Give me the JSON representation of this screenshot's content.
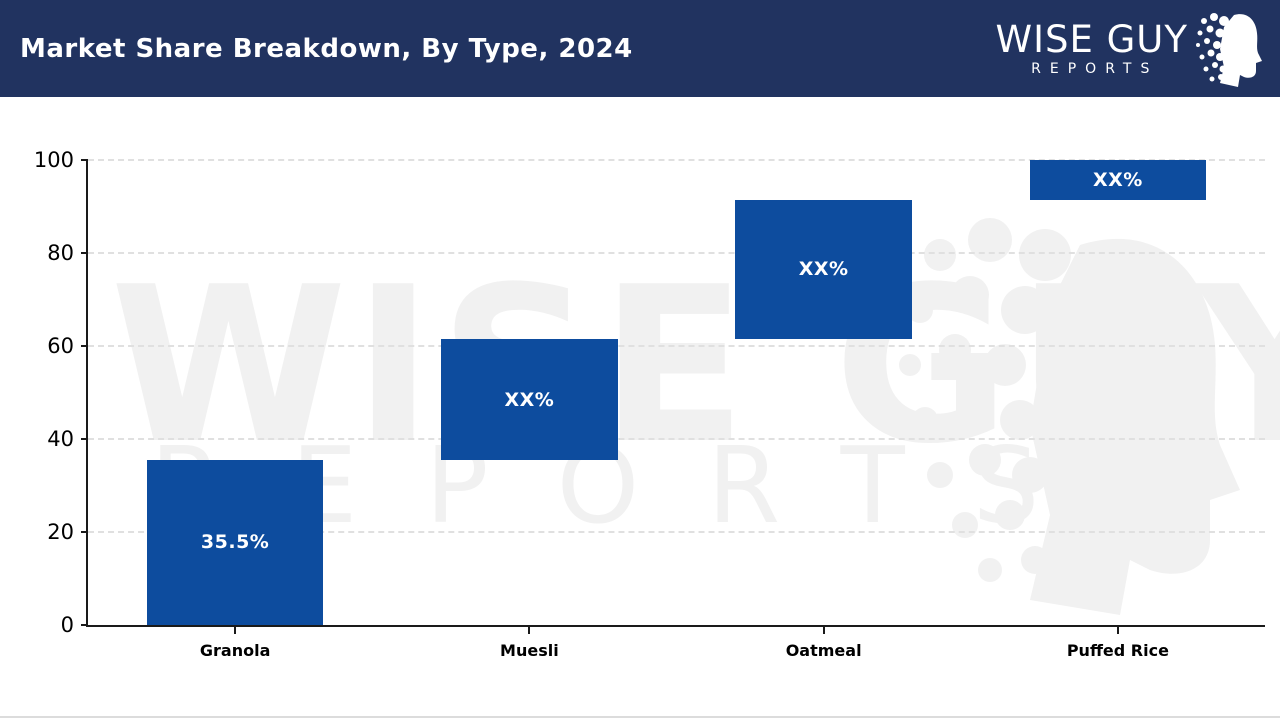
{
  "header": {
    "title": "Market Share Breakdown, By Type, 2024",
    "bg_color": "#213360",
    "logo": {
      "line1": "WISE GUY",
      "line2": "REPORTS"
    }
  },
  "watermark": {
    "line1": "WISE GUY",
    "line2": "REPORTS"
  },
  "chart_data": {
    "type": "bar",
    "subtype": "waterfall",
    "title": "Market Share Breakdown, By Type, 2024",
    "categories": [
      "Granola",
      "Muesli",
      "Oatmeal",
      "Puffed Rice"
    ],
    "segments": [
      {
        "category": "Granola",
        "start": 0,
        "end": 35.5,
        "label": "35.5%"
      },
      {
        "category": "Muesli",
        "start": 35.5,
        "end": 61.4,
        "label": "XX%"
      },
      {
        "category": "Oatmeal",
        "start": 61.4,
        "end": 91.5,
        "label": "XX%"
      },
      {
        "category": "Puffed Rice",
        "start": 91.5,
        "end": 100,
        "label": "XX%"
      }
    ],
    "xlabel": "",
    "ylabel": "",
    "ylim": [
      0,
      100
    ],
    "yticks": [
      0,
      20,
      40,
      60,
      80,
      100
    ],
    "grid": true,
    "grid_style": "dashed",
    "legend": "none",
    "bar_color": "#0d4c9e",
    "bar_label_color": "#ffffff",
    "axis_color": "#1a1a1a"
  }
}
